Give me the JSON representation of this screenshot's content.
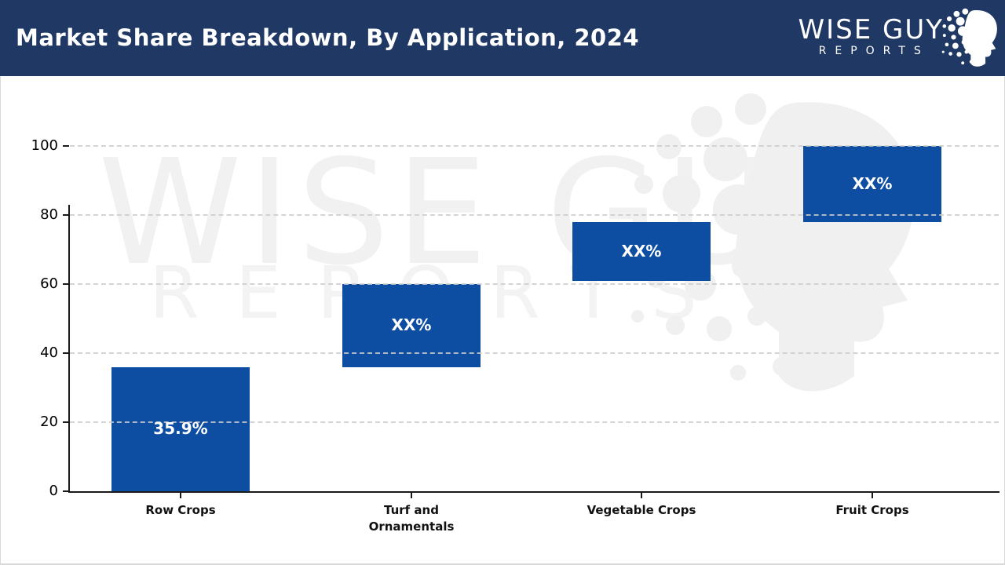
{
  "header": {
    "title": "Market Share Breakdown, By Application, 2024",
    "logo": {
      "top": "WISE GUY",
      "bottom": "REPORTS"
    }
  },
  "watermark": {
    "line1": "WISE GUY",
    "line2": "REPORTS"
  },
  "chart_data": {
    "type": "bar",
    "subtype": "waterfall-floating-bars",
    "title": "Market Share Breakdown, By Application, 2024",
    "categories": [
      [
        "Row Crops"
      ],
      [
        "Turf and",
        "Ornamentals"
      ],
      [
        "Vegetable Crops"
      ],
      [
        "Fruit Crops"
      ]
    ],
    "segments": [
      {
        "category": "Row Crops",
        "start": 0,
        "end": 35.9,
        "label": "35.9%"
      },
      {
        "category": "Turf and Ornamentals",
        "start": 36,
        "end": 60,
        "label": "XX%"
      },
      {
        "category": "Vegetable Crops",
        "start": 61,
        "end": 78,
        "label": "XX%"
      },
      {
        "category": "Fruit Crops",
        "start": 78,
        "end": 100,
        "label": "XX%"
      }
    ],
    "yticks": [
      0,
      20,
      40,
      60,
      80,
      100
    ],
    "ylim": [
      0,
      105
    ],
    "xlabel": "",
    "ylabel": "",
    "grid": true,
    "grid_style": "dashed",
    "legend_position": "none",
    "bar_color": "#0d4da2",
    "value_label_color": "#ffffff",
    "header_color": "#1f3864"
  }
}
